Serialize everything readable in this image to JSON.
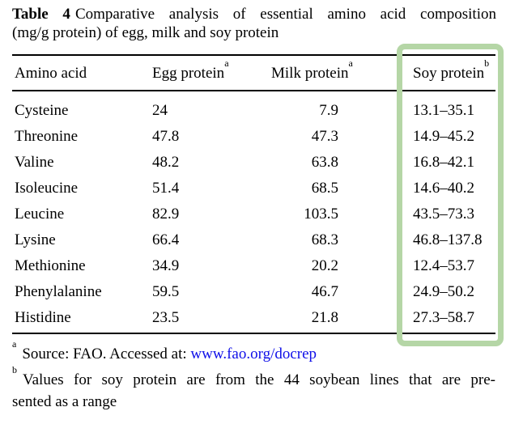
{
  "caption": {
    "tag": "Table 4",
    "line1_rest": "Comparative analysis of essential amino acid composition",
    "line2": "(mg/g protein) of egg, milk and soy protein"
  },
  "table": {
    "columns": [
      {
        "label": "Amino acid",
        "sup": ""
      },
      {
        "label": "Egg protein",
        "sup": "a"
      },
      {
        "label": "Milk protein",
        "sup": "a"
      },
      {
        "label": "Soy protein",
        "sup": "b"
      }
    ],
    "rows": [
      {
        "name": "Cysteine",
        "egg": "24",
        "milk": "7.9",
        "soy": "13.1–35.1"
      },
      {
        "name": "Threonine",
        "egg": "47.8",
        "milk": "47.3",
        "soy": "14.9–45.2"
      },
      {
        "name": "Valine",
        "egg": "48.2",
        "milk": "63.8",
        "soy": "16.8–42.1"
      },
      {
        "name": "Isoleucine",
        "egg": "51.4",
        "milk": "68.5",
        "soy": "14.6–40.2"
      },
      {
        "name": "Leucine",
        "egg": "82.9",
        "milk": "103.5",
        "soy": "43.5–73.3"
      },
      {
        "name": "Lysine",
        "egg": "66.4",
        "milk": "68.3",
        "soy": "46.8–137.8"
      },
      {
        "name": "Methionine",
        "egg": "34.9",
        "milk": "20.2",
        "soy": "12.4–53.7"
      },
      {
        "name": "Phenylalanine",
        "egg": "59.5",
        "milk": "46.7",
        "soy": "24.9–50.2"
      },
      {
        "name": "Histidine",
        "egg": "23.5",
        "milk": "21.8",
        "soy": "27.3–58.7"
      }
    ],
    "highlight_color": "#b5d6a6"
  },
  "footnotes": {
    "a": {
      "marker": "a",
      "text": "Source: FAO. Accessed at: ",
      "link": "www.fao.org/docrep",
      "link_color": "#0f0fe8"
    },
    "b": {
      "marker": "b",
      "line1": "Values for soy protein are from the 44 soybean lines that are pre-",
      "line2": "sented as a range"
    }
  }
}
